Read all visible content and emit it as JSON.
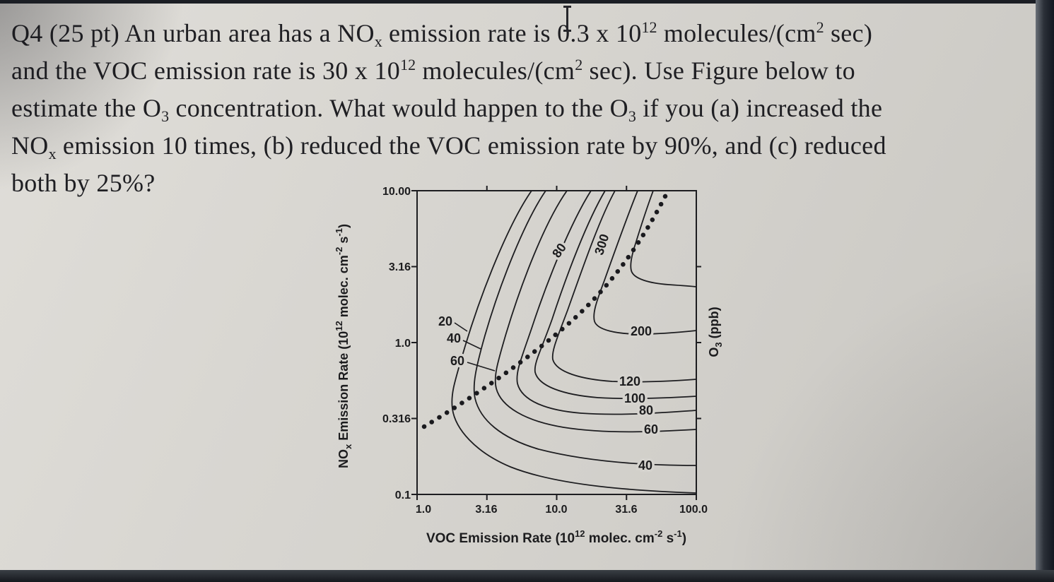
{
  "colors": {
    "paper": "#d6d4cf",
    "ink": "#1f1f23",
    "photo_edge": "#171a1f"
  },
  "question": {
    "lines": [
      {
        "segs": [
          {
            "t": "Q4 (25 pt) An urban area has a NO"
          },
          {
            "t": "x",
            "s": "sub"
          },
          {
            "t": " emission rate is "
          },
          {
            "t": "0.3",
            "cursor": true
          },
          {
            "t": " x 10"
          },
          {
            "t": "12",
            "s": "sup"
          },
          {
            "t": " molecules/(cm"
          },
          {
            "t": "2",
            "s": "sup"
          },
          {
            "t": " sec)"
          }
        ]
      },
      {
        "segs": [
          {
            "t": "and the VOC emission rate is 30 x 10"
          },
          {
            "t": "12",
            "s": "sup"
          },
          {
            "t": " molecules/(cm"
          },
          {
            "t": "2",
            "s": "sup"
          },
          {
            "t": " sec). Use Figure below to"
          }
        ]
      },
      {
        "segs": [
          {
            "t": "estimate the O"
          },
          {
            "t": "3",
            "s": "sub"
          },
          {
            "t": " concentration. What would happen to the O"
          },
          {
            "t": "3",
            "s": "sub"
          },
          {
            "t": " if you (a) increased the"
          }
        ]
      },
      {
        "segs": [
          {
            "t": "NO"
          },
          {
            "t": "x",
            "s": "sub"
          },
          {
            "t": " emission 10 times, (b) reduced the VOC emission rate by 90%, and (c) reduced"
          }
        ]
      },
      {
        "segs": [
          {
            "t": "both by 25%?"
          }
        ]
      }
    ]
  },
  "figure": {
    "y_axis": {
      "title_parts": {
        "p1": "NO",
        "sub1": "x",
        "p2": " Emission Rate (10",
        "sup1": "12",
        "p3": " molec. cm",
        "sup2": "-2",
        "p4": " s",
        "sup3": "-1",
        "p5": ")"
      },
      "ticks": [
        "10.00",
        "3.16",
        "1.0",
        "0.316",
        "0.1"
      ]
    },
    "x_axis": {
      "title_parts": {
        "p1": "VOC Emission Rate (10",
        "sup1": "12",
        "p2": " molec. cm",
        "sup2": "-2",
        "p3": " s",
        "sup3": "-1",
        "p4": ")"
      },
      "ticks": [
        "1.0",
        "3.16",
        "10.0",
        "31.6",
        "100.0"
      ]
    },
    "z_axis": {
      "title_parts": {
        "p1": "O",
        "sub1": "3",
        "p2": " (ppb)"
      }
    },
    "contour_labels": {
      "left": [
        "20",
        "40",
        "60"
      ],
      "ridge": [
        "80",
        "300"
      ],
      "right": [
        "200",
        "120",
        "100",
        "80",
        "60",
        "40"
      ]
    }
  },
  "chart_data": {
    "type": "contour",
    "title": "",
    "xlabel": "VOC Emission Rate (10^12 molec. cm^-2 s^-1)",
    "ylabel": "NOx Emission Rate (10^12 molec. cm^-2 s^-1)",
    "zlabel": "O3 (ppb)",
    "x_scale": "log",
    "y_scale": "log",
    "xlim": [
      1.0,
      100.0
    ],
    "ylim": [
      0.1,
      10.0
    ],
    "x_ticks": [
      1.0,
      3.16,
      10.0,
      31.6,
      100.0
    ],
    "y_ticks": [
      10.0,
      3.16,
      1.0,
      0.316,
      0.1
    ],
    "grid": false,
    "legend": "none",
    "contour_levels_ppb": [
      20,
      40,
      60,
      80,
      100,
      120,
      200,
      300
    ],
    "contours": [
      {
        "level": 20,
        "ridge_knee_voc_nox": [
          1.8,
          0.38
        ]
      },
      {
        "level": 40,
        "ridge_knee_voc_nox": [
          2.5,
          0.46
        ],
        "right_edge_nox": 0.16
      },
      {
        "level": 60,
        "ridge_knee_voc_nox": [
          3.6,
          0.54
        ],
        "right_edge_nox": 0.27
      },
      {
        "level": 80,
        "ridge_knee_voc_nox": [
          5.1,
          0.69
        ],
        "right_edge_nox": 0.36
      },
      {
        "level": 100,
        "ridge_knee_voc_nox": [
          6.8,
          0.84
        ],
        "right_edge_nox": 0.45
      },
      {
        "level": 120,
        "ridge_knee_voc_nox": [
          9.2,
          1.05
        ],
        "right_edge_nox": 0.58
      },
      {
        "level": 200,
        "ridge_knee_voc_nox": [
          18,
          1.8
        ],
        "right_edge_nox": 1.2
      },
      {
        "level": 300,
        "ridge_knee_voc_nox": [
          33,
          3.5
        ],
        "right_edge_nox": 2.3
      }
    ],
    "ridge_line": {
      "style": "bold-dotted",
      "points_voc_nox": [
        [
          1.1,
          0.28
        ],
        [
          3.2,
          0.75
        ],
        [
          10,
          1.9
        ],
        [
          32,
          4.5
        ],
        [
          75,
          9.5
        ]
      ]
    }
  }
}
